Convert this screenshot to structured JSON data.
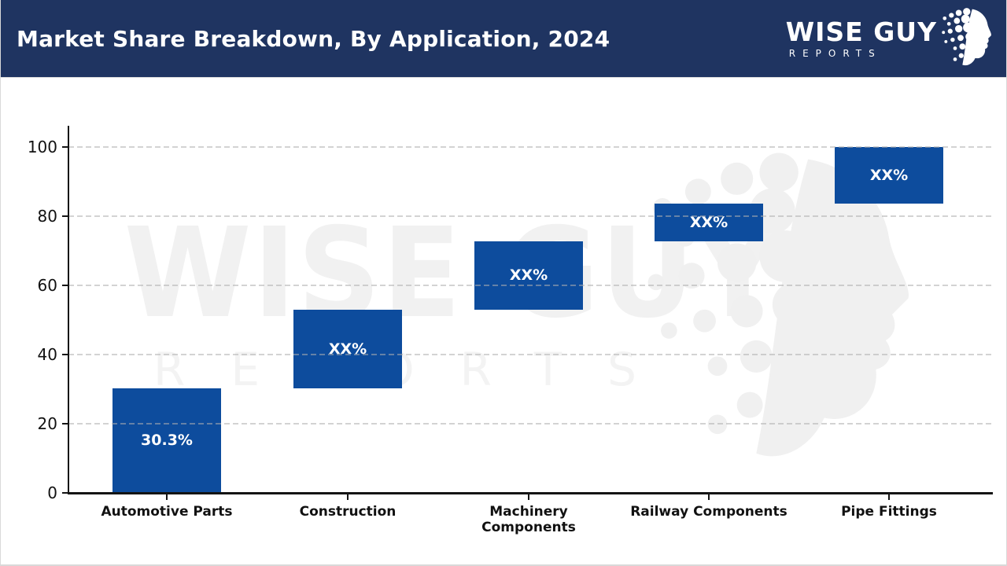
{
  "header": {
    "title": "Market Share Breakdown, By Application, 2024",
    "brand": {
      "line1": "WISE GUY",
      "line2": "REPORTS"
    }
  },
  "watermark": {
    "line1": "WISE GUY",
    "line2": "REPORTS"
  },
  "colors": {
    "header_bg": "#1f3461",
    "bar": "#0d4c9d",
    "bar_label": "#ffffff",
    "axis": "#141414",
    "watermark": "#f1f1f1"
  },
  "chart_data": {
    "type": "bar",
    "subtype": "waterfall",
    "title": "Market Share Breakdown, By Application, 2024",
    "xlabel": "",
    "ylabel": "",
    "ylim": [
      0,
      106
    ],
    "yticks": [
      0,
      20,
      40,
      60,
      80,
      100
    ],
    "grid": true,
    "legend": false,
    "categories": [
      "Automotive Parts",
      "Construction",
      "Machinery\nComponents",
      "Railway Components",
      "Pipe Fittings"
    ],
    "segments": [
      {
        "category": "Automotive Parts",
        "start": 0,
        "end": 30.3,
        "value": 30.3,
        "label": "30.3%"
      },
      {
        "category": "Construction",
        "start": 30.3,
        "end": 53.0,
        "value": 22.7,
        "label": "XX%"
      },
      {
        "category": "Machinery Components",
        "start": 53.0,
        "end": 72.7,
        "value": 19.7,
        "label": "XX%"
      },
      {
        "category": "Railway Components",
        "start": 72.7,
        "end": 83.6,
        "value": 10.9,
        "label": "XX%"
      },
      {
        "category": "Pipe Fittings",
        "start": 83.6,
        "end": 100.0,
        "value": 16.4,
        "label": "XX%"
      }
    ]
  }
}
